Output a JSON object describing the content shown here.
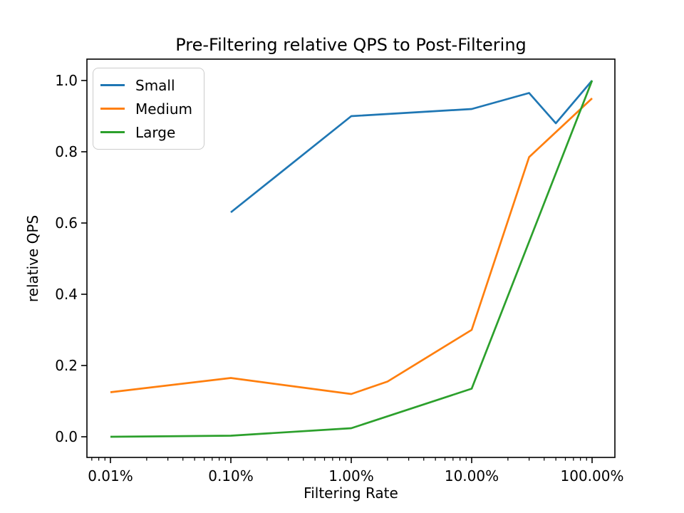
{
  "figure": {
    "title": "Pre-Filtering relative QPS to Post-Filtering",
    "xlabel": "Filtering Rate",
    "ylabel": "relative QPS"
  },
  "chart_data": {
    "type": "line",
    "title": "Pre-Filtering relative QPS to Post-Filtering",
    "xlabel": "Filtering Rate",
    "ylabel": "relative QPS",
    "x_scale": "log",
    "x_tick_labels": [
      "0.01%",
      "0.10%",
      "1.00%",
      "10.00%",
      "100.00%"
    ],
    "x_tick_values_percent": [
      0.01,
      0.1,
      1,
      10,
      100
    ],
    "y_tick_labels": [
      "0.0",
      "0.2",
      "0.4",
      "0.6",
      "0.8",
      "1.0"
    ],
    "y_tick_values": [
      0.0,
      0.2,
      0.4,
      0.6,
      0.8,
      1.0
    ],
    "xlim_log10_percent": [
      -2.2,
      2.2
    ],
    "ylim": [
      -0.058,
      1.06
    ],
    "grid": false,
    "legend_position": "upper left",
    "axis_color": "#000000",
    "series": [
      {
        "name": "Small",
        "color": "#1f77b4",
        "x_percent": [
          0.1,
          1,
          10,
          30,
          50,
          100
        ],
        "y": [
          0.63,
          0.9,
          0.92,
          0.965,
          0.88,
          1.0
        ]
      },
      {
        "name": "Medium",
        "color": "#ff7f0e",
        "x_percent": [
          0.01,
          0.1,
          1,
          2,
          10,
          30,
          100
        ],
        "y": [
          0.125,
          0.165,
          0.12,
          0.155,
          0.3,
          0.785,
          0.95
        ]
      },
      {
        "name": "Large",
        "color": "#2ca02c",
        "x_percent": [
          0.01,
          0.1,
          1,
          10,
          100
        ],
        "y": [
          0.0,
          0.003,
          0.024,
          0.135,
          1.0
        ]
      }
    ]
  }
}
